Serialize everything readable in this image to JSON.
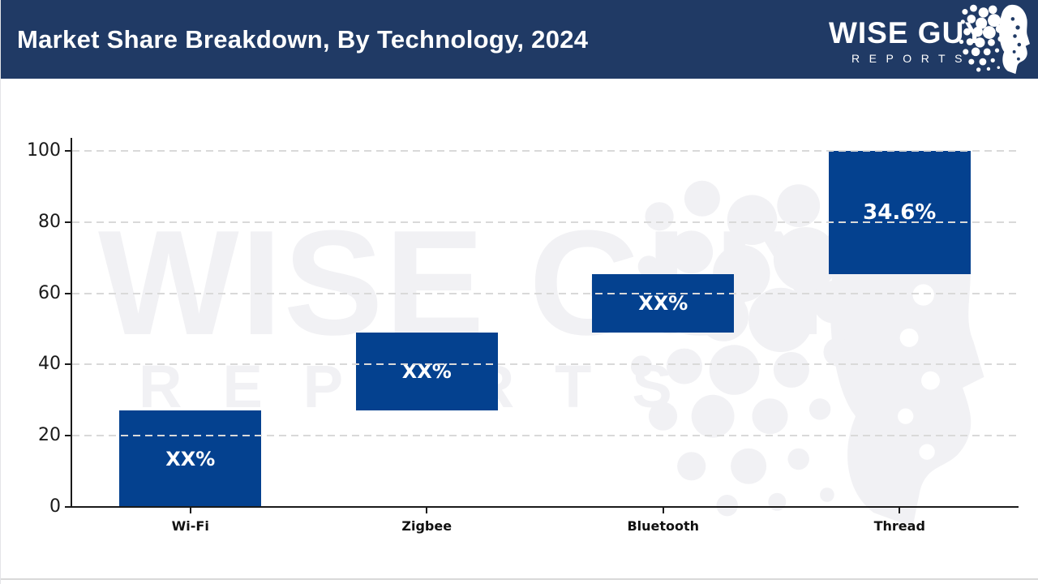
{
  "header": {
    "title": "Market Share Breakdown, By Technology, 2024",
    "logo": {
      "wordmark": "WISE GUY",
      "subtext": "REPORTS"
    }
  },
  "watermark": {
    "wordmark": "WISE GUY",
    "subtext": "REPORTS"
  },
  "chart_data": {
    "type": "bar",
    "subtype": "floating-waterfall",
    "title": "Market Share Breakdown, By Technology, 2024",
    "categories": [
      "Wi-Fi",
      "Zigbee",
      "Bluetooth",
      "Thread"
    ],
    "segments": [
      {
        "category": "Wi-Fi",
        "start": 0,
        "end": 27,
        "value": 27,
        "label": "XX%"
      },
      {
        "category": "Zigbee",
        "start": 27,
        "end": 49,
        "value": 22,
        "label": "XX%"
      },
      {
        "category": "Bluetooth",
        "start": 49,
        "end": 65.4,
        "value": 16.4,
        "label": "XX%"
      },
      {
        "category": "Thread",
        "start": 65.4,
        "end": 100,
        "value": 34.6,
        "label": "34.6%"
      }
    ],
    "xlabel": "",
    "ylabel": "",
    "ylim": [
      0,
      100
    ],
    "yticks": [
      0,
      20,
      40,
      60,
      80,
      100
    ],
    "grid": "horizontal-dashed",
    "grid_on_top_of_bars": true,
    "legend": null,
    "bar_color": "#04418f",
    "bar_label_color": "#ffffff",
    "header_color": "#203a65",
    "grid_color": "#d9d9d9",
    "watermark_color": "#f1f1f4"
  }
}
